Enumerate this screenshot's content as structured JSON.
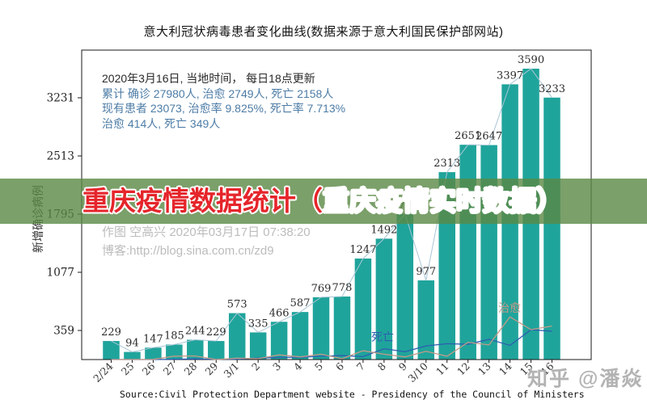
{
  "banner": {
    "red_text": "重庆疫情数据统计（",
    "white_text": "重庆疫情实时数据）",
    "band_color": "#5a8845",
    "band_opacity": 0.8,
    "red_text_color": "#e5252b"
  },
  "watermarks": {
    "zhihu": "知乎 @潘焱",
    "maker_line1": "作图 空高兴 2020年03月17日 07:38:20",
    "maker_line2": "博客:http://blog.sina.com.cn/zd9"
  },
  "chart": {
    "title": "意大利冠状病毒患者变化曲线(数据来源于意大利国民保护部网站)",
    "ylabel": "新增确诊病例",
    "info_lines": [
      "2020年3月16日, 当地时间， 每日18点更新",
      "累计 确诊 27980人, 治愈 2749人, 死亡 2158人",
      "现有患者 23073, 治愈率 9.825%, 死亡率 7.713%",
      "治愈 414人, 死亡 349人"
    ],
    "source_note": "Source:Civil Protection Department website - Presidency of the Council of Ministers"
  },
  "chart_data": {
    "type": "bar",
    "title": "意大利冠状病毒患者变化曲线(数据来源于意大利国民保护部网站)",
    "xlabel": "",
    "ylabel": "新增确诊病例",
    "categories": [
      "2/24",
      "25",
      "26",
      "27",
      "28",
      "29",
      "3/1",
      "2",
      "3",
      "4",
      "5",
      "6",
      "7",
      "8",
      "9",
      "3/10",
      "11",
      "12",
      "13",
      "14",
      "15",
      "16"
    ],
    "series": [
      {
        "name": "新增确诊病例",
        "type": "bar",
        "color": "#1fa49b",
        "values": [
          229,
          94,
          147,
          185,
          244,
          229,
          573,
          335,
          466,
          587,
          769,
          778,
          1247,
          1492,
          1797,
          977,
          2313,
          2651,
          2647,
          3397,
          3590,
          3233
        ],
        "hidden_label_index": 14
      },
      {
        "name": "死亡",
        "type": "line",
        "color": "#2d5fb0",
        "values": [
          1,
          0,
          0,
          4,
          8,
          4,
          5,
          18,
          27,
          28,
          41,
          49,
          36,
          133,
          97,
          168,
          196,
          189,
          250,
          175,
          368,
          349
        ]
      },
      {
        "name": "治愈",
        "type": "line",
        "color": "#c49a88",
        "values": [
          0,
          1,
          2,
          42,
          45,
          0,
          17,
          11,
          58,
          33,
          66,
          11,
          109,
          66,
          33,
          102,
          41,
          213,
          181,
          527,
          369,
          414
        ]
      }
    ],
    "yticks": [
      359,
      1077,
      1795,
      2513,
      3231
    ],
    "ylim": [
      0,
      3800
    ],
    "grid": false,
    "legend": "inline line labels 死亡 / 治愈",
    "trend_line_color": "#a9c6d6"
  }
}
